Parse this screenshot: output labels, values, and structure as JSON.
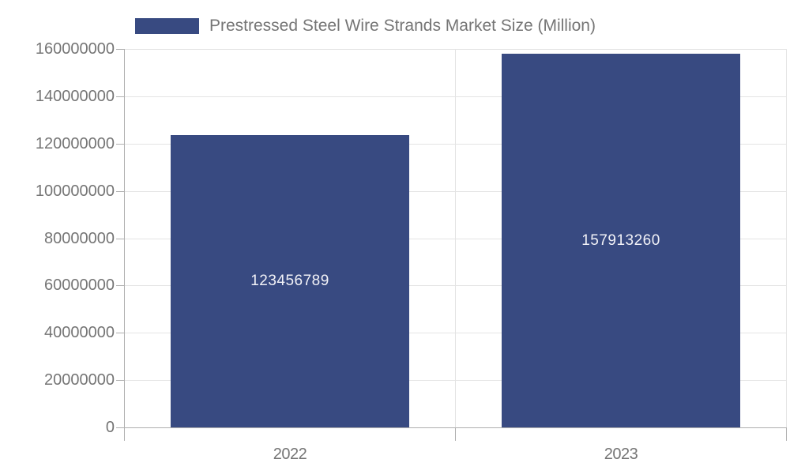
{
  "chart_data": {
    "type": "bar",
    "title": "Prestressed Steel Wire Strands Market Size (Million)",
    "legend": {
      "position": "top",
      "entries": [
        "Prestressed Steel Wire Strands Market Size (Million)"
      ]
    },
    "categories": [
      "2022",
      "2023"
    ],
    "series": [
      {
        "name": "Prestressed Steel Wire Strands Market Size (Million)",
        "values": [
          123456789,
          157913260
        ]
      }
    ],
    "bar_value_labels": [
      "123456789",
      "157913260"
    ],
    "xlabel": "",
    "ylabel": "",
    "ylim": [
      0,
      160000000
    ],
    "ytick_step": 20000000,
    "ytick_labels": [
      "0",
      "20000000",
      "40000000",
      "60000000",
      "80000000",
      "100000000",
      "120000000",
      "140000000",
      "160000000"
    ],
    "grid": true,
    "colors": {
      "bar": "#384A81",
      "grid": "#e4e4e4",
      "axis": "#b0b0b0",
      "tick_text": "#757575",
      "value_label": "#f2f2f7",
      "background": "#ffffff"
    }
  }
}
